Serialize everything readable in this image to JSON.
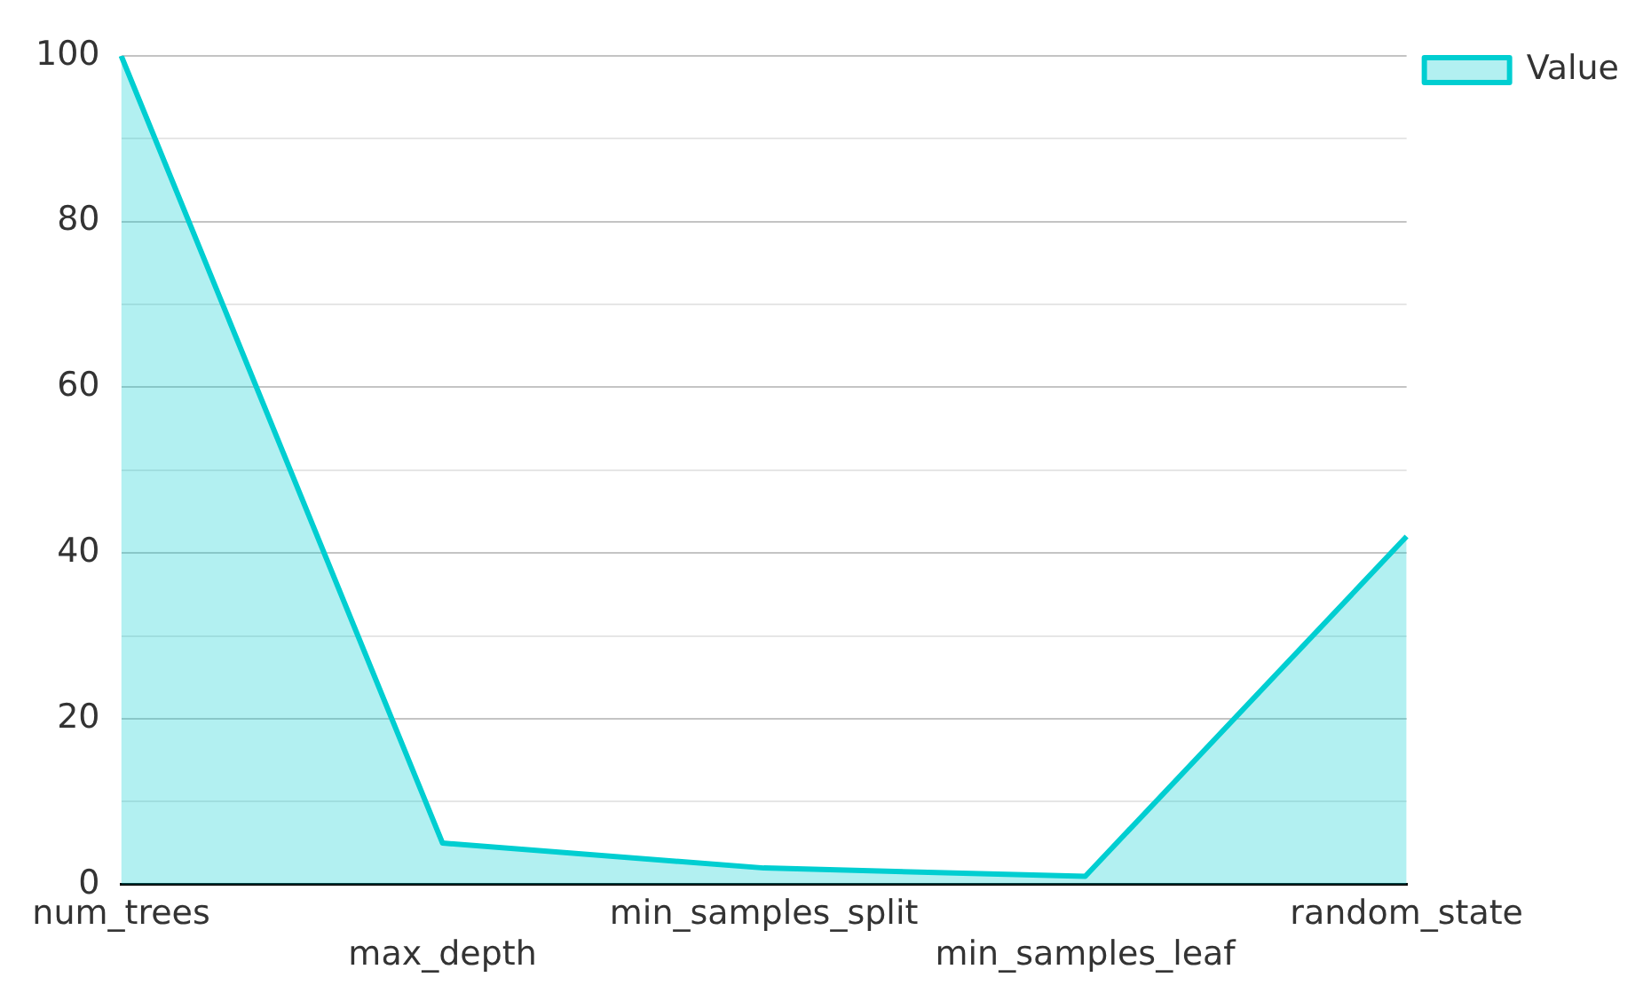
{
  "chart_data": {
    "type": "area",
    "categories": [
      "num_trees",
      "max_depth",
      "min_samples_split",
      "min_samples_leaf",
      "random_state"
    ],
    "series": [
      {
        "name": "Value",
        "color": "#00ced1",
        "values": [
          100,
          5,
          2,
          1,
          42
        ]
      }
    ],
    "ylim": [
      0,
      100
    ],
    "yticks": [
      0,
      {
        "value": 10,
        "label": null
      },
      20,
      {
        "value": 30,
        "label": null
      },
      40,
      {
        "value": 50,
        "label": null
      },
      60,
      {
        "value": 70,
        "label": null
      },
      80,
      {
        "value": 90,
        "label": null
      },
      100
    ],
    "grid": "y",
    "legend": "top right",
    "marker": "none"
  }
}
